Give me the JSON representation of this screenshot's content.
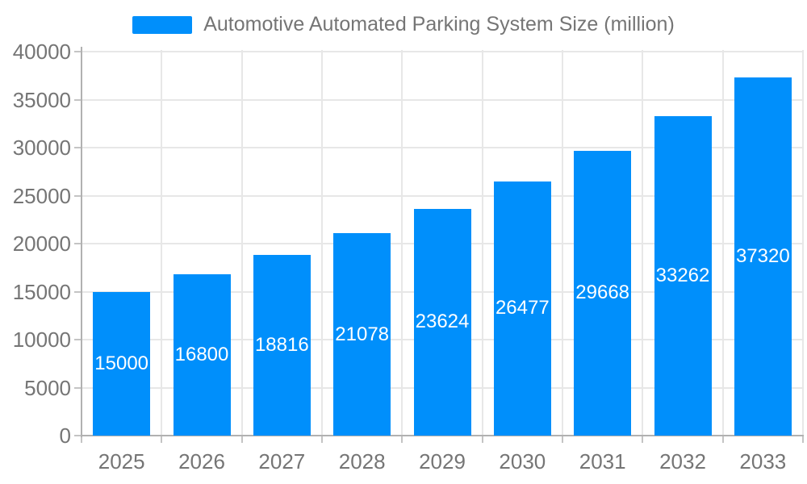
{
  "chart_data": {
    "type": "bar",
    "title": "Automotive Automated Parking System Size (million)",
    "legend_position": "top",
    "categories": [
      "2025",
      "2026",
      "2027",
      "2028",
      "2029",
      "2030",
      "2031",
      "2032",
      "2033"
    ],
    "values": [
      15000,
      16800,
      18816,
      21078,
      23624,
      26477,
      29668,
      33262,
      37320
    ],
    "yticks": [
      0,
      5000,
      10000,
      15000,
      20000,
      25000,
      30000,
      35000,
      40000
    ],
    "ylim": [
      0,
      40000
    ],
    "grid": "on",
    "xlabel": "",
    "ylabel": "",
    "colors": {
      "bar": "#008FFB",
      "grid_line": "#e7e7e7",
      "axis_line": "#b1b1b1",
      "tick_mark": "#c4c4c4",
      "axis_label": "#757575",
      "value_label": "#ffffff",
      "background": "#ffffff"
    }
  }
}
